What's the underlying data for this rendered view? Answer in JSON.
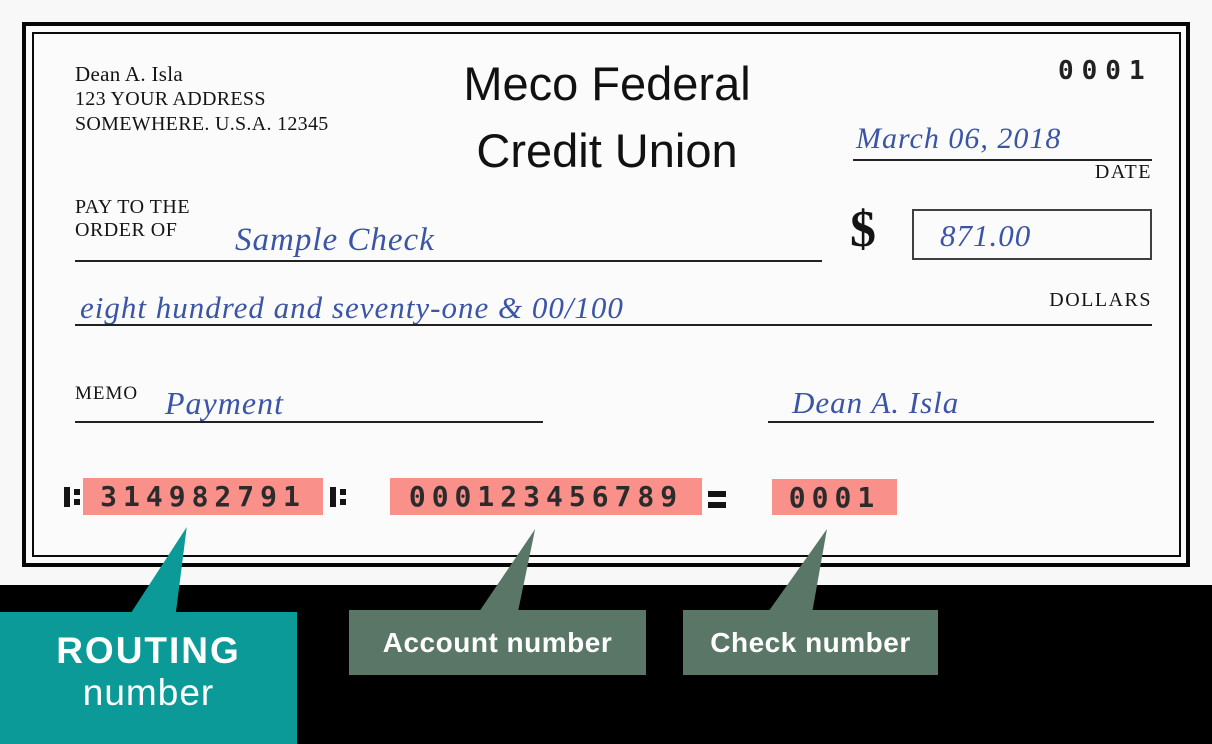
{
  "colors": {
    "highlight": "#f9908a",
    "teal": "#0c9a99",
    "sage": "#5a7667",
    "ink": "#3a54a6",
    "band": "#000000"
  },
  "check": {
    "payer_name": "Dean A. Isla",
    "payer_address1": "123 YOUR ADDRESS",
    "payer_address2": "SOMEWHERE. U.S.A. 12345",
    "bank_line1": "Meco Federal",
    "bank_line2": "Credit Union",
    "check_number": "0001",
    "date_value": "March 06, 2018",
    "date_label": "DATE",
    "payto_line1": "PAY TO THE",
    "payto_line2": "ORDER OF",
    "payee": "Sample Check",
    "currency_symbol": "$",
    "amount": "871.00",
    "dollars_label": "DOLLARS",
    "amount_words": "eight hundred and seventy-one & 00/100",
    "memo_label": "MEMO",
    "memo_value": "Payment",
    "signature": "Dean A. Isla",
    "micr_routing": "314982791",
    "micr_account": "000123456789",
    "micr_check": "0001"
  },
  "callouts": {
    "routing_line1": "ROUTING",
    "routing_line2": "number",
    "account": "Account number",
    "check": "Check number"
  }
}
